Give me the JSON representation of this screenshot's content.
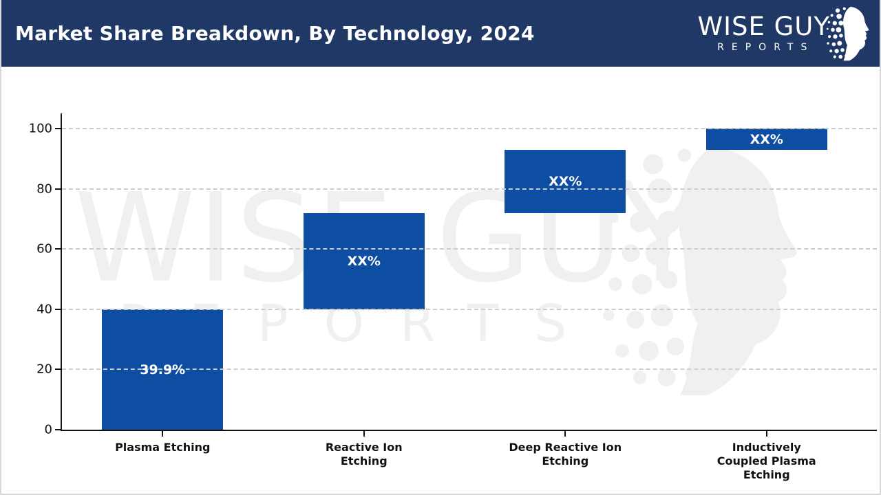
{
  "header": {
    "title": "Market Share Breakdown, By Technology, 2024",
    "logo": {
      "name": "WISE GUY",
      "subtitle": "REPORTS"
    }
  },
  "watermark": {
    "line1": "WISE GUY",
    "line2": "REPORTS"
  },
  "colors": {
    "header_bg": "#1f3865",
    "header_text": "#ffffff",
    "bar": "#0d4ea3",
    "bar_label": "#ffffff",
    "axis": "#111111",
    "tick_text": "#111111",
    "grid": "#cccccc",
    "watermark": "#f0f0f0",
    "page_border": "#d8d8d8"
  },
  "chart_data": {
    "type": "bar",
    "subtype": "waterfall",
    "title": "Market Share Breakdown, By Technology, 2024",
    "categories": [
      "Plasma Etching",
      "Reactive Ion Etching",
      "Deep Reactive Ion Etching",
      "Inductively Coupled Plasma Etching"
    ],
    "category_label_lines": [
      [
        "Plasma Etching"
      ],
      [
        "Reactive Ion",
        "Etching"
      ],
      [
        "Deep Reactive Ion",
        "Etching"
      ],
      [
        "Inductively",
        "Coupled Plasma",
        "Etching"
      ]
    ],
    "series": [
      {
        "name": "Market share cumulative waterfall",
        "segments": [
          {
            "category": "Plasma Etching",
            "start": 0,
            "end": 39.9,
            "value": 39.9,
            "label": "39.9%"
          },
          {
            "category": "Reactive Ion Etching",
            "start": 39.9,
            "end": 71.9,
            "value": 32.0,
            "label": "XX%"
          },
          {
            "category": "Deep Reactive Ion Etching",
            "start": 71.9,
            "end": 92.9,
            "value": 21.0,
            "label": "XX%"
          },
          {
            "category": "Inductively Coupled Plasma Etching",
            "start": 92.9,
            "end": 100.0,
            "value": 7.1,
            "label": "XX%"
          }
        ]
      }
    ],
    "xlabel": "",
    "ylabel": "",
    "ylim": [
      0,
      100
    ],
    "yticks": [
      0,
      20,
      40,
      60,
      80,
      100
    ],
    "grid": "horizontal-dashed",
    "legend": "none",
    "bar_color": "#0d4ea3"
  }
}
